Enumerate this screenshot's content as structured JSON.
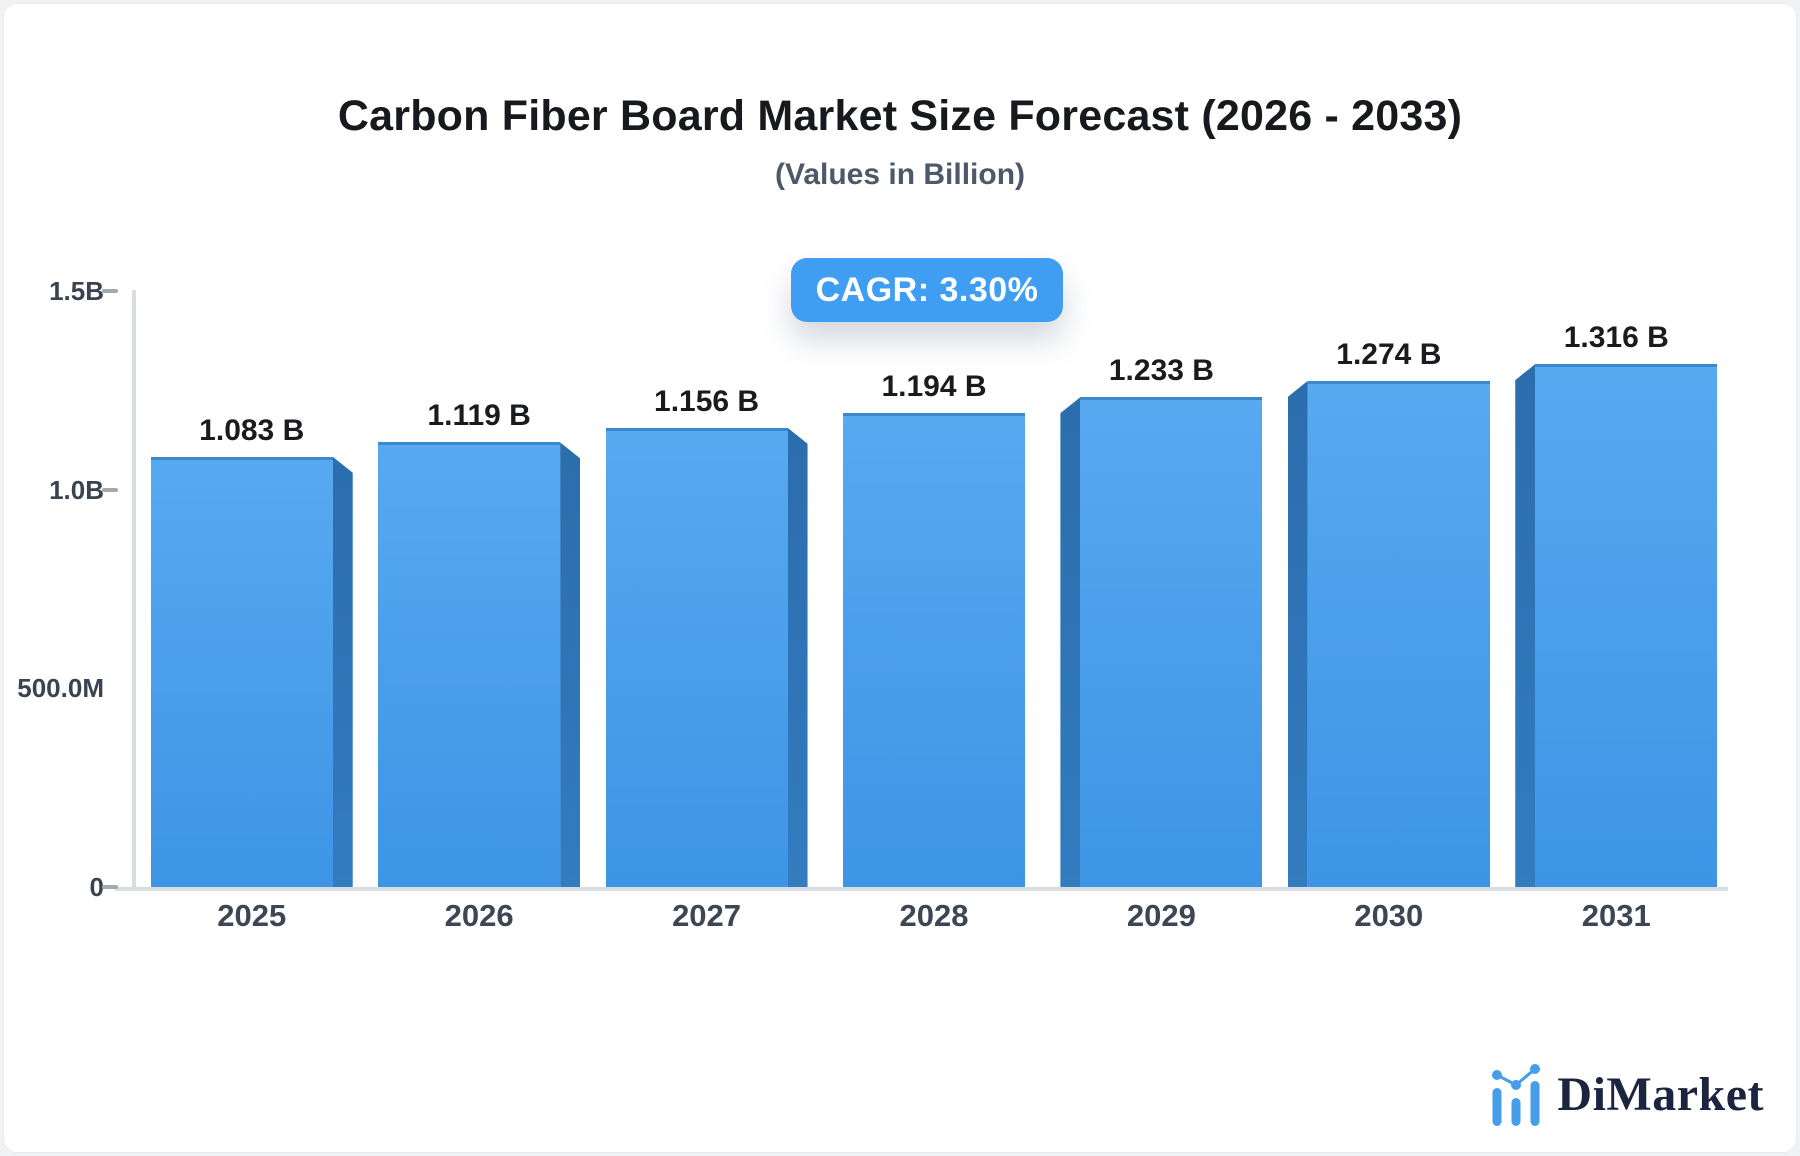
{
  "header": {
    "title": "Carbon Fiber Board Market Size Forecast (2026 - 2033)",
    "subtitle": "(Values in Billion)"
  },
  "badge": {
    "label": "CAGR: 3.30%"
  },
  "chart_data": {
    "type": "bar",
    "title": "Carbon Fiber Board Market Size Forecast (2026 - 2033)",
    "subtitle": "(Values in Billion)",
    "categories": [
      "2025",
      "2026",
      "2027",
      "2028",
      "2029",
      "2030",
      "2031"
    ],
    "values": [
      1.083,
      1.119,
      1.156,
      1.194,
      1.233,
      1.274,
      1.316
    ],
    "bar_labels": [
      "1.083 B",
      "1.119 B",
      "1.156 B",
      "1.194 B",
      "1.233 B",
      "1.274 B",
      "1.316 B"
    ],
    "bar_side_3d": [
      "right",
      "right",
      "right",
      "none",
      "left",
      "left",
      "left"
    ],
    "unit": "B",
    "ylim": [
      0,
      1.5
    ],
    "yticks": [
      {
        "label": "1.5B",
        "value": 1.5,
        "dash": true
      },
      {
        "label": "1.0B",
        "value": 1.0,
        "dash": true
      },
      {
        "label": "500.0M",
        "value": 0.5,
        "dash": false
      },
      {
        "label": "0",
        "value": 0.0,
        "dash": true
      }
    ],
    "grid": false,
    "legend": "none",
    "cagr_label": "CAGR: 3.30%",
    "colors": {
      "bar_face_top": "#57a9f0",
      "bar_face_bottom": "#3e95e5",
      "bar_side_top": "#2b6dad",
      "bar_side_bottom": "#327cbf",
      "bar_top_edge": "#3c88cc",
      "axis_line": "#d9dce1",
      "tick": "#a3a9b1",
      "label": "#191b1f",
      "badge_bg": "#3f9ef2",
      "badge_text": "#ffffff"
    }
  },
  "logo": {
    "text": "DiMarket",
    "color": "#1b2540",
    "icon_color": "#449ee9"
  }
}
